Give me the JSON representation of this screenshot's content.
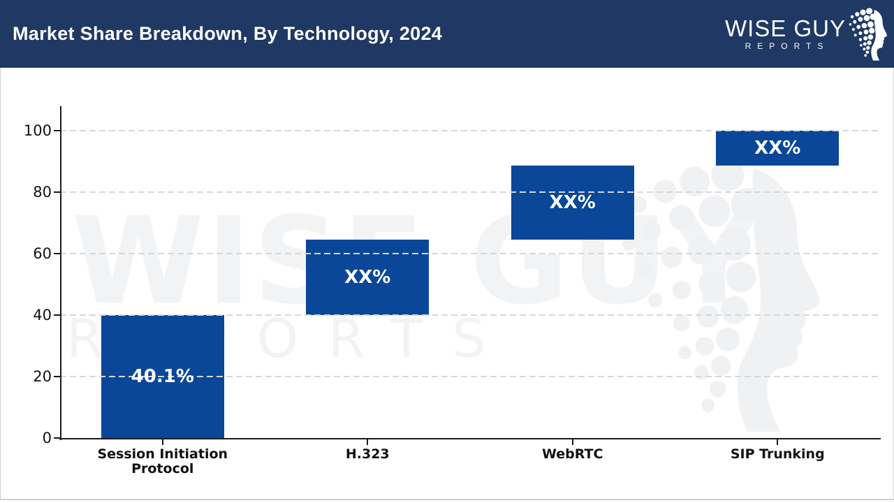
{
  "header": {
    "title": "Market Share Breakdown, By Technology, 2024",
    "bg_color": "#1f3864",
    "logo": {
      "name": "WISE GUY",
      "subtext": "REPORTS"
    }
  },
  "watermark": {
    "line1": "WISE GUY",
    "line2": "REPORTS"
  },
  "chart_data": {
    "type": "bar",
    "subtype": "waterfall-floating-bars",
    "title": "Market Share Breakdown, By Technology, 2024",
    "categories": [
      "Session Initiation Protocol",
      "H.323",
      "WebRTC",
      "SIP Trunking"
    ],
    "series": [
      {
        "name": "Market Share",
        "segments": [
          {
            "category": "Session Initiation Protocol",
            "start": 0,
            "end": 40.1,
            "label": "40.1%"
          },
          {
            "category": "H.323",
            "start": 40.1,
            "end": 64.6,
            "label": "XX%"
          },
          {
            "category": "WebRTC",
            "start": 64.6,
            "end": 88.6,
            "label": "XX%"
          },
          {
            "category": "SIP Trunking",
            "start": 88.6,
            "end": 100,
            "label": "XX%"
          }
        ]
      }
    ],
    "xlabel": "",
    "ylabel": "",
    "ylim": [
      0,
      105
    ],
    "yticks": [
      0,
      20,
      40,
      60,
      80,
      100
    ],
    "grid": {
      "axis": "y",
      "style": "dashed",
      "drawn_above_bars": true,
      "color": "#d5d8db"
    },
    "legend": "none",
    "bar_color": "#0b4798",
    "bar_label_color": "#ffffff"
  }
}
